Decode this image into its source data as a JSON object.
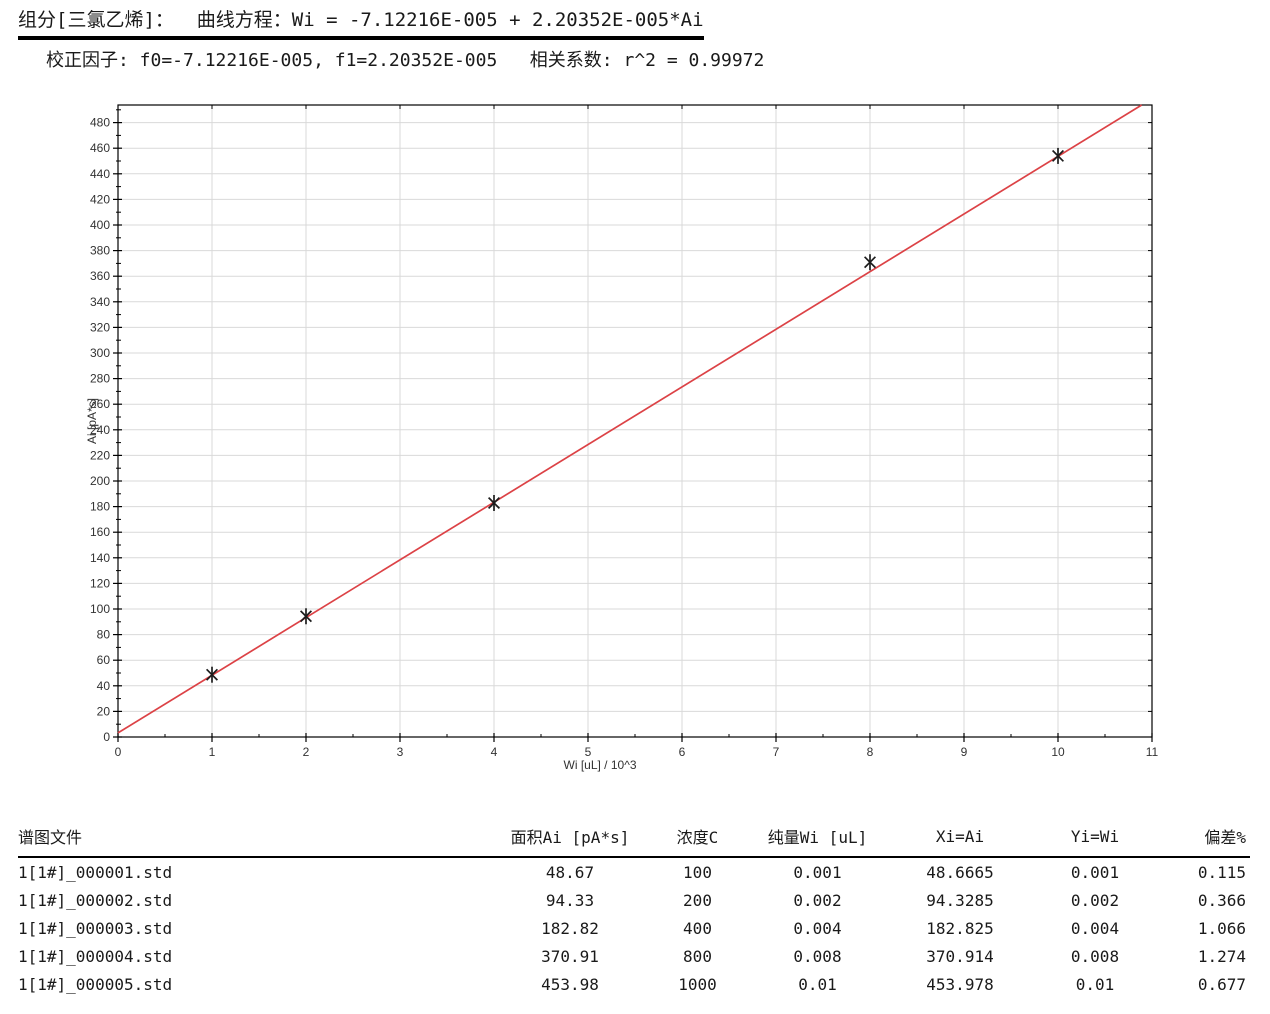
{
  "header": {
    "title_line": "组分[三氯乙烯]：  曲线方程：Wi = -7.12216E-005 + 2.20352E-005*Ai",
    "calibration_line": "校正因子: f0=-7.12216E-005, f1=2.20352E-005   相关系数: r^2 = 0.99972"
  },
  "chart_data": {
    "type": "scatter",
    "title": "",
    "x": [
      1,
      2,
      4,
      8,
      10
    ],
    "y": [
      48.67,
      94.33,
      182.82,
      370.91,
      453.98
    ],
    "xlabel": "Wi [uL] / 10^3",
    "ylabel": "Ai [pA*s]",
    "xlim": [
      0,
      11
    ],
    "ylim": [
      0,
      493.75
    ],
    "x_tick_interval": 1,
    "y_tick_interval": 20,
    "y_tick_label_max": 480,
    "x_minor_interval": 0.5,
    "y_minor_interval": 10,
    "grid": true,
    "legend": false,
    "marker": "asterisk",
    "marker_color": "#1c1c1c",
    "grid_color": "#d9d9d9",
    "border_color": "#000000",
    "fit_line": {
      "color": "#dc4246",
      "x_start": 0,
      "y_start": 3.23,
      "x_end": 10.89,
      "y_end": 493.75
    }
  },
  "table": {
    "columns": [
      "谱图文件",
      "面积Ai [pA*s]",
      "浓度C",
      "纯量Wi [uL]",
      "Xi=Ai",
      "Yi=Wi",
      "偏差%"
    ],
    "rows": [
      [
        "1[1#]_000001.std",
        "48.67",
        "100",
        "0.001",
        "48.6665",
        "0.001",
        "0.115"
      ],
      [
        "1[1#]_000002.std",
        "94.33",
        "200",
        "0.002",
        "94.3285",
        "0.002",
        "0.366"
      ],
      [
        "1[1#]_000003.std",
        "182.82",
        "400",
        "0.004",
        "182.825",
        "0.004",
        "1.066"
      ],
      [
        "1[1#]_000004.std",
        "370.91",
        "800",
        "0.008",
        "370.914",
        "0.008",
        "1.274"
      ],
      [
        "1[1#]_000005.std",
        "453.98",
        "1000",
        "0.01",
        "453.978",
        "0.01",
        "0.677"
      ]
    ]
  }
}
